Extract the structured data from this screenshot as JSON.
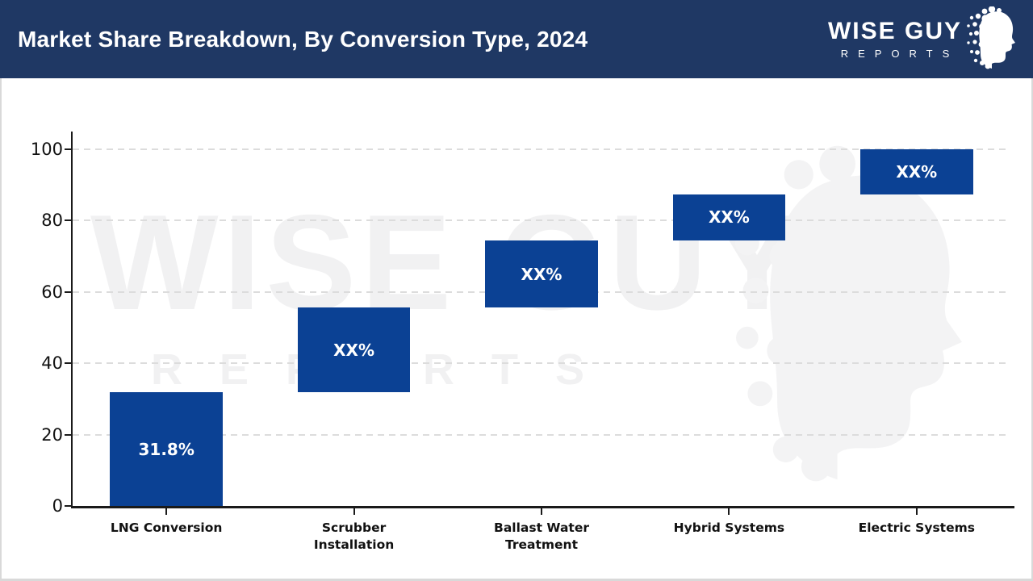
{
  "header": {
    "title": "Market Share Breakdown, By Conversion Type, 2024",
    "logo_line1": "WISE GUY",
    "logo_line2": "REPORTS",
    "bg_color": "#1f3864"
  },
  "watermark": {
    "line1": "WISE GUY",
    "line2": "REPORTS"
  },
  "colors": {
    "header_navy": "#1f3864",
    "bar_blue": "#0b4194",
    "gridline": "#dcdcdc",
    "axis": "#1a1a1a",
    "watermark": "#f1f1f2"
  },
  "chart_data": {
    "type": "bar",
    "variant": "waterfall",
    "title": "Market Share Breakdown, By Conversion Type, 2024",
    "categories": [
      "LNG Conversion",
      "Scrubber Installation",
      "Ballast Water Treatment",
      "Hybrid Systems",
      "Electric Systems"
    ],
    "category_lines": [
      [
        "LNG Conversion"
      ],
      [
        "Scrubber",
        "Installation"
      ],
      [
        "Ballast Water",
        "Treatment"
      ],
      [
        "Hybrid Systems"
      ],
      [
        "Electric Systems"
      ]
    ],
    "series": [
      {
        "name": "Market Share (%)",
        "segments": [
          {
            "category": "LNG Conversion",
            "start": 0,
            "end": 31.8,
            "label": "31.8%"
          },
          {
            "category": "Scrubber Installation",
            "start": 31.8,
            "end": 55.6,
            "label": "XX%"
          },
          {
            "category": "Ballast Water Treatment",
            "start": 55.6,
            "end": 74.4,
            "label": "XX%"
          },
          {
            "category": "Hybrid Systems",
            "start": 74.4,
            "end": 87.4,
            "label": "XX%"
          },
          {
            "category": "Electric Systems",
            "start": 87.4,
            "end": 100,
            "label": "XX%"
          }
        ]
      }
    ],
    "xlabel": "",
    "ylabel": "",
    "y_ticks": [
      0,
      20,
      40,
      60,
      80,
      100
    ],
    "ylim": [
      0,
      105
    ],
    "grid": true,
    "grid_style": "dashed",
    "legend": false,
    "bar_color": "#0b4194",
    "bar_label_color": "#ffffff"
  }
}
